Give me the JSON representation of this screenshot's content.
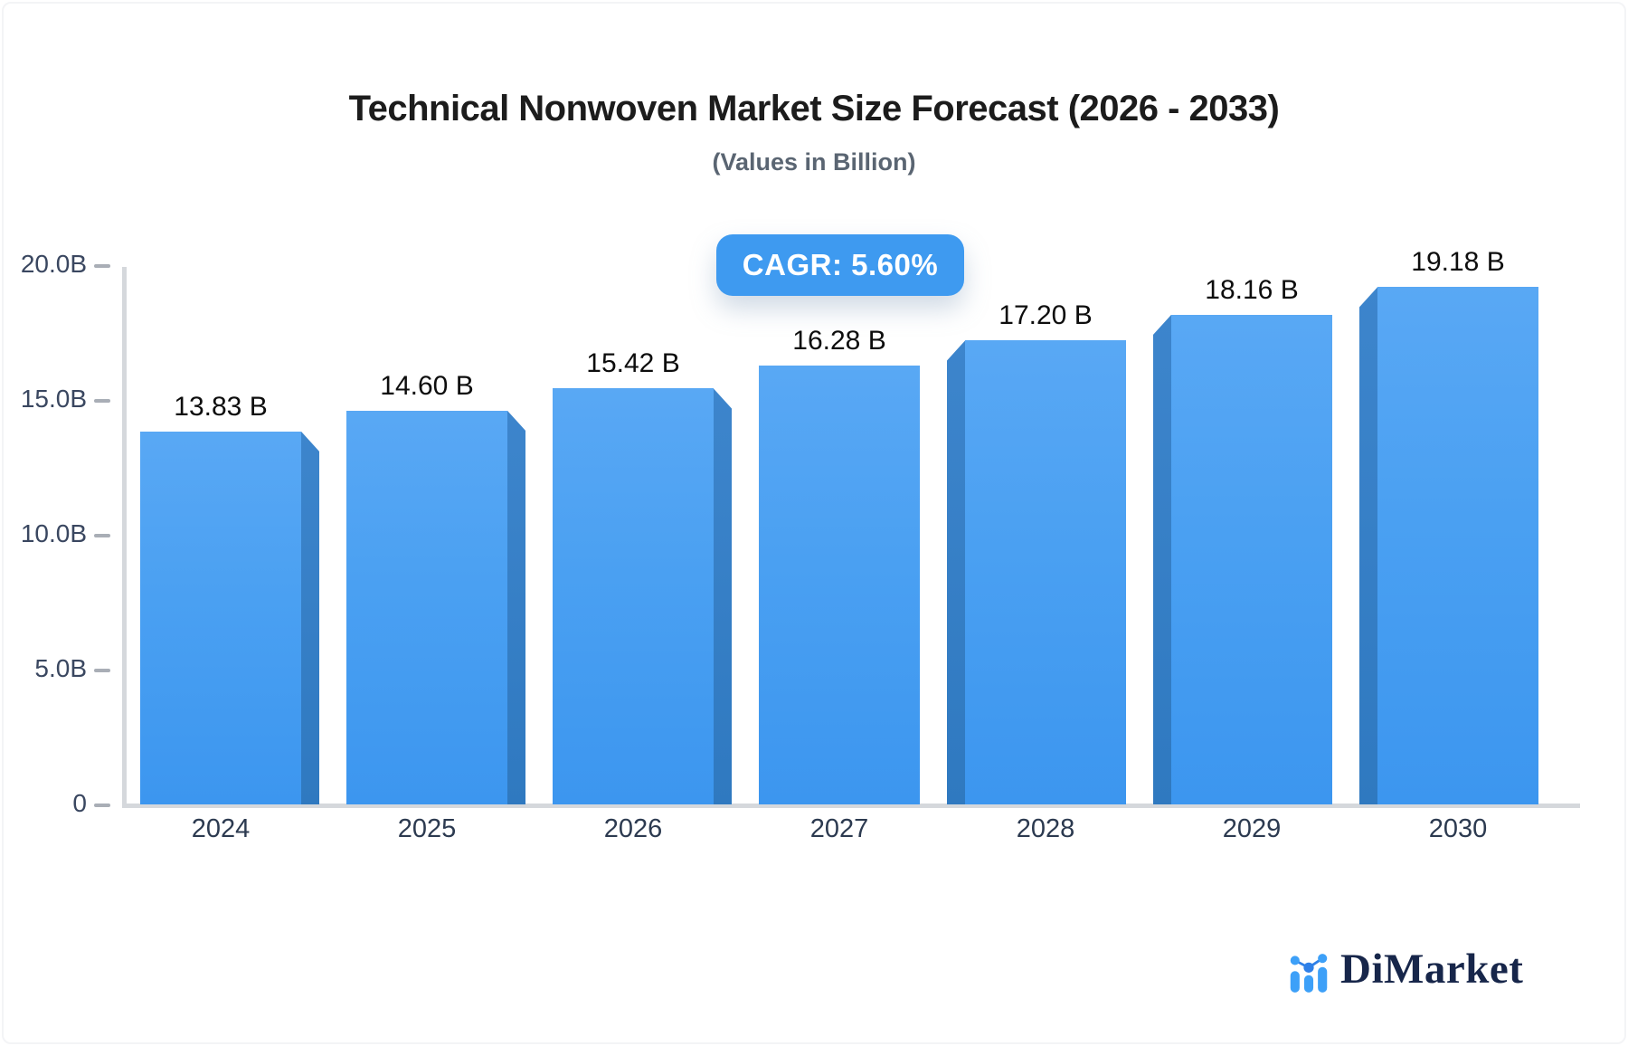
{
  "header": {
    "title": "Technical Nonwoven Market Size Forecast (2026 - 2033)",
    "subtitle": "(Values in Billion)"
  },
  "badge": {
    "label": "CAGR: 5.60%",
    "color": "#3e9af0"
  },
  "chart_data": {
    "type": "bar",
    "title": "Technical Nonwoven Market Size Forecast (2026 - 2033)",
    "subtitle": "(Values in Billion)",
    "unit": "Billion",
    "cagr": "5.60%",
    "categories": [
      "2024",
      "2025",
      "2026",
      "2027",
      "2028",
      "2029",
      "2030"
    ],
    "values": [
      13.83,
      14.6,
      15.42,
      16.28,
      17.2,
      18.16,
      19.18
    ],
    "value_labels": [
      "13.83 B",
      "14.60 B",
      "15.42 B",
      "16.28 B",
      "17.20 B",
      "18.16 B",
      "19.18 B"
    ],
    "xlabel": "",
    "ylabel": "",
    "ylim": [
      0,
      20
    ],
    "yticks": [
      {
        "value": 0,
        "label": "0"
      },
      {
        "value": 5,
        "label": "5.0B"
      },
      {
        "value": 10,
        "label": "10.0B"
      },
      {
        "value": 15,
        "label": "15.0B"
      },
      {
        "value": 20,
        "label": "20.0B"
      }
    ],
    "grid": false,
    "legend": false,
    "bar_color_top": "#59a8f4",
    "bar_color_bottom": "#3c96ef",
    "bar_side_color": "#2f79c0",
    "axis_color": "#d5d8dc"
  },
  "footer": {
    "brand": "DiMarket"
  }
}
